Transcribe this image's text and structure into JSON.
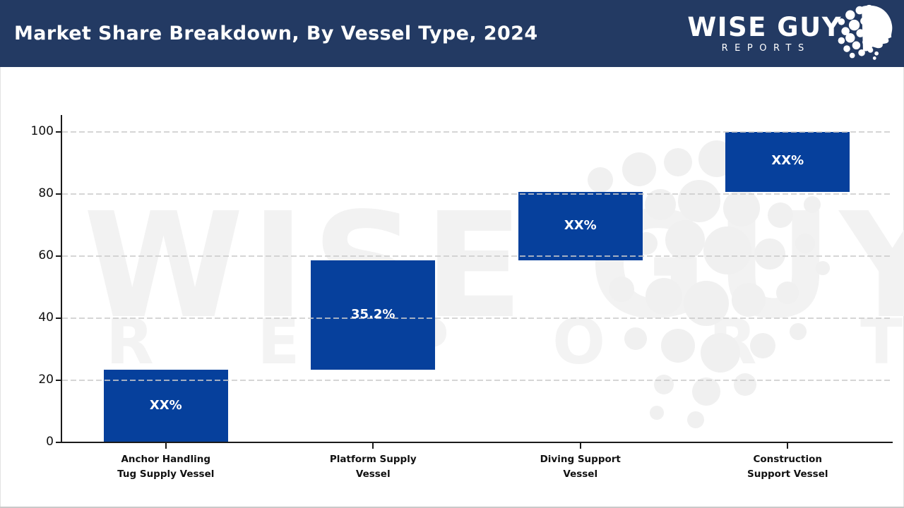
{
  "header": {
    "title": "Market Share Breakdown, By Vessel Type, 2024",
    "bg_color": "#233a63",
    "logo": {
      "line1": "WISE GUY",
      "line2": "REPORTS"
    }
  },
  "watermark": {
    "line1": "WISE GUY",
    "line2": "R E P O R T S"
  },
  "chart_data": {
    "type": "bar",
    "subtype": "floating-waterfall",
    "title": "Market Share Breakdown, By Vessel Type, 2024",
    "categories": [
      "Anchor Handling Tug Supply Vessel",
      "Platform Supply Vessel",
      "Diving Support Vessel",
      "Construction Support Vessel"
    ],
    "category_lines": [
      [
        "Anchor Handling",
        "Tug Supply Vessel"
      ],
      [
        "Platform Supply",
        "Vessel"
      ],
      [
        "Diving Support",
        "Vessel"
      ],
      [
        "Construction",
        "Support Vessel"
      ]
    ],
    "bars": [
      {
        "start": 0,
        "end": 23.4,
        "label": "XX%"
      },
      {
        "start": 23.4,
        "end": 58.6,
        "label": "35.2%"
      },
      {
        "start": 58.6,
        "end": 80.7,
        "label": "XX%"
      },
      {
        "start": 80.7,
        "end": 100,
        "label": "XX%"
      }
    ],
    "yticks": [
      0,
      20,
      40,
      60,
      80,
      100
    ],
    "ylim": [
      0,
      105
    ],
    "grid": "dashed-horizontal",
    "legend": "none",
    "bar_color": "#06409c",
    "axis_color": "#1a1a1a",
    "xlabel": "",
    "ylabel": ""
  }
}
